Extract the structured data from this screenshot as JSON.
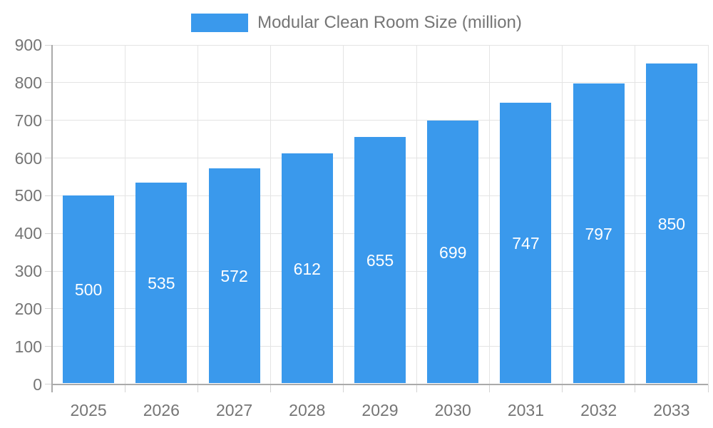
{
  "chart_data": {
    "type": "bar",
    "title": "Modular Clean Room Size (million)",
    "categories": [
      "2025",
      "2026",
      "2027",
      "2028",
      "2029",
      "2030",
      "2031",
      "2032",
      "2033"
    ],
    "values": [
      500,
      535,
      572,
      612,
      655,
      699,
      747,
      797,
      850
    ],
    "xlabel": "",
    "ylabel": "",
    "ylim": [
      0,
      900
    ],
    "ytick_step": 100,
    "grid": true,
    "legend_position": "top-center",
    "bar_labels_inside": true,
    "colors": {
      "bar": "#3A99EC",
      "bar_label": "#FFFFFF",
      "axis_text": "#757575",
      "gridline": "#E4E4E4",
      "axis_line": "#AAAAAA",
      "tick": "#D4D4D4",
      "background": "#FFFFFF"
    }
  }
}
